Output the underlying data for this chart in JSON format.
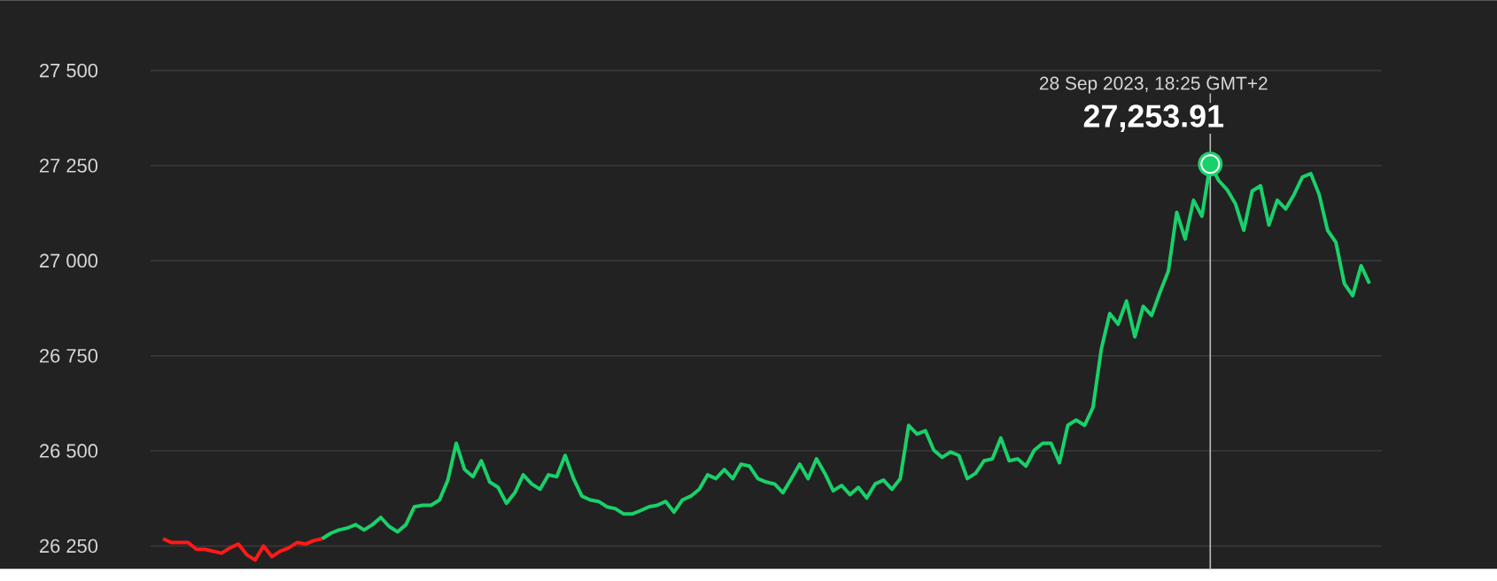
{
  "chart_data": {
    "type": "line",
    "categories": [
      null,
      null,
      null,
      null,
      null,
      null,
      null,
      null,
      null,
      null,
      null,
      null,
      null,
      null,
      null,
      null,
      null,
      null,
      null,
      null,
      null,
      null,
      null,
      null,
      null,
      null,
      null,
      null,
      null,
      null,
      null,
      null,
      null,
      null,
      null,
      null,
      null,
      null,
      null,
      null,
      null,
      null,
      null,
      null,
      null,
      null,
      null,
      null,
      null,
      null,
      null,
      null,
      null,
      null,
      null,
      null,
      null,
      null,
      null,
      null,
      null,
      null,
      null,
      null,
      null,
      null,
      null,
      null,
      null,
      null,
      null,
      null,
      null,
      null,
      null,
      null,
      null,
      null,
      null,
      null,
      null,
      null,
      null,
      null,
      null,
      null,
      null,
      null,
      null,
      null,
      null,
      null,
      null,
      null,
      null,
      null,
      null,
      null,
      null,
      null,
      null,
      null,
      null,
      null,
      null,
      null,
      null,
      null,
      null,
      null,
      null,
      null,
      null,
      null,
      null,
      null,
      null,
      null,
      null,
      null,
      null,
      null,
      null,
      null,
      null,
      null,
      null,
      null,
      null,
      null,
      null,
      null,
      null,
      null,
      null,
      null,
      null,
      null,
      null,
      null,
      null,
      null,
      null,
      null,
      null
    ],
    "series": [
      {
        "color": "#ff1a1a",
        "values": [
          26269,
          26259,
          26259,
          26259,
          26241,
          26241,
          26236,
          26231,
          26245,
          26255,
          26227,
          26213,
          26250,
          26222,
          26236,
          26245,
          26259,
          26255,
          26264,
          26269,
          null,
          null,
          null,
          null,
          null,
          null,
          null,
          null,
          null,
          null,
          null,
          null,
          null,
          null,
          null,
          null,
          null,
          null,
          null,
          null,
          null,
          null,
          null,
          null,
          null,
          null,
          null,
          null,
          null,
          null,
          null,
          null,
          null,
          null,
          null,
          null,
          null,
          null,
          null,
          null,
          null,
          null,
          null,
          null,
          null,
          null,
          null,
          null,
          null,
          null,
          null,
          null,
          null,
          null,
          null,
          null,
          null,
          null,
          null,
          null,
          null,
          null,
          null,
          null,
          null,
          null,
          null,
          null,
          null,
          null,
          null,
          null,
          null,
          null,
          null,
          null,
          null,
          null,
          null,
          null,
          null,
          null,
          null,
          null,
          null,
          null,
          null,
          null,
          null,
          null,
          null,
          null,
          null,
          null,
          null,
          null,
          null,
          null,
          null,
          null,
          null,
          null,
          null,
          null,
          null,
          null,
          null,
          null,
          null,
          null,
          null,
          null,
          null,
          null,
          null,
          null,
          null,
          null,
          null,
          null,
          null,
          null,
          null,
          null,
          null
        ]
      },
      {
        "color": "#19d16a",
        "values": [
          null,
          null,
          null,
          null,
          null,
          null,
          null,
          null,
          null,
          null,
          null,
          null,
          null,
          null,
          null,
          null,
          null,
          null,
          null,
          26269,
          26283,
          26292,
          26297,
          26306,
          26292,
          26306,
          26325,
          26301,
          26287,
          26306,
          26353,
          26357,
          26357,
          26371,
          26423,
          26520,
          26451,
          26432,
          26474,
          26418,
          26404,
          26362,
          26390,
          26437,
          26413,
          26399,
          26437,
          26432,
          26488,
          26427,
          26381,
          26371,
          26367,
          26353,
          26348,
          26334,
          26334,
          26343,
          26353,
          26357,
          26367,
          26339,
          26371,
          26381,
          26399,
          26437,
          26427,
          26451,
          26427,
          26465,
          26460,
          26427,
          26418,
          26413,
          26390,
          26427,
          26465,
          26427,
          26479,
          26441,
          26395,
          26409,
          26385,
          26404,
          26376,
          26413,
          26423,
          26399,
          26427,
          26567,
          26544,
          26553,
          26502,
          26483,
          26497,
          26488,
          26427,
          26441,
          26474,
          26479,
          26534,
          26474,
          26479,
          26460,
          26502,
          26520,
          26520,
          26469,
          26567,
          26581,
          26567,
          26614,
          26768,
          26861,
          26833,
          26894,
          26800,
          26880,
          26856,
          26917,
          26973,
          27127,
          27057,
          27159,
          27117,
          27253.91,
          27211,
          27187,
          27150,
          27080,
          27183,
          27197,
          27094,
          27159,
          27136,
          27174,
          27220,
          27229,
          27174,
          27080,
          27048,
          26940,
          26908,
          26987,
          26940
        ]
      }
    ],
    "ylim": [
      26190,
      27685
    ],
    "yticks": [
      {
        "value": 26250,
        "label": "26 250"
      },
      {
        "value": 26500,
        "label": "26 500"
      },
      {
        "value": 26750,
        "label": "26 750"
      },
      {
        "value": 27000,
        "label": "27 000"
      },
      {
        "value": 27250,
        "label": "27 250"
      },
      {
        "value": 27500,
        "label": "27 500"
      }
    ],
    "grid": "y",
    "tick_labels": "y",
    "annotations": [
      "28 Sep 2023, 18:25 GMT+2",
      "27,253.91"
    ]
  }
}
